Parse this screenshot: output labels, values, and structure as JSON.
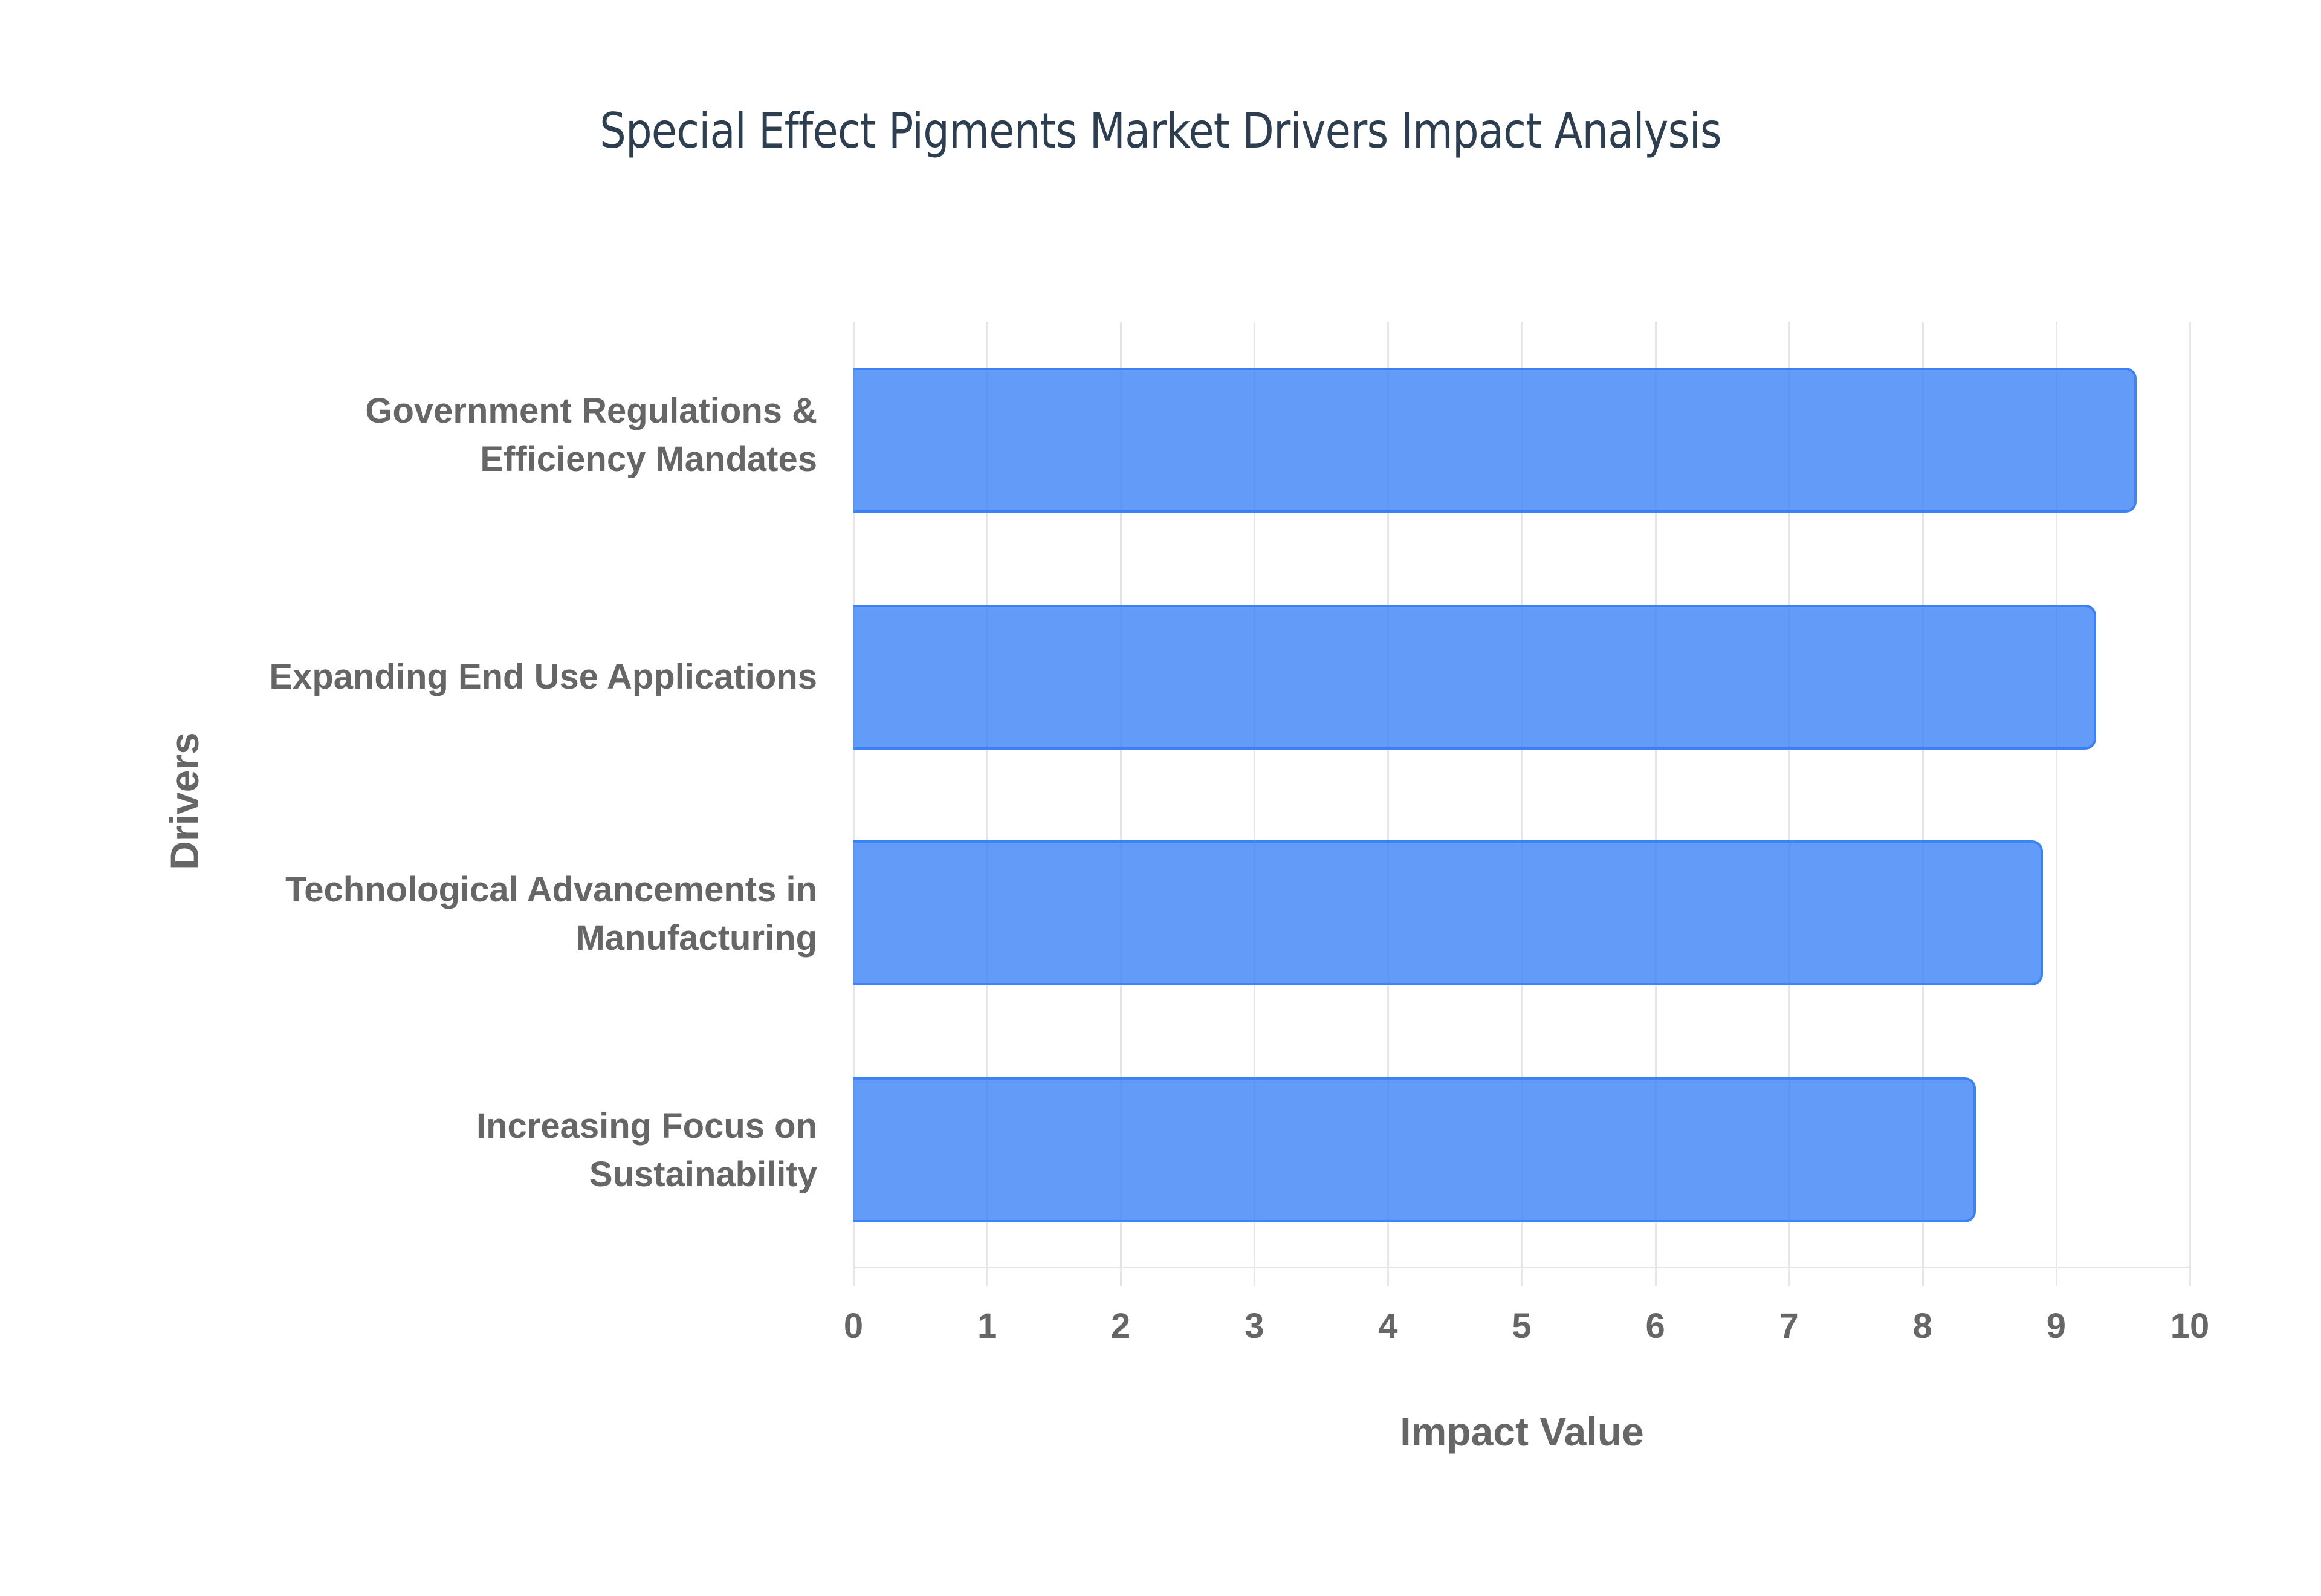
{
  "title": "Special Effect Pigments Market Drivers Impact Analysis",
  "axes": {
    "xlabel": "Impact Value",
    "ylabel": "Drivers",
    "xticks": [
      "0",
      "1",
      "2",
      "3",
      "4",
      "5",
      "6",
      "7",
      "8",
      "9",
      "10"
    ]
  },
  "categories": [
    {
      "line1": "Government Regulations &",
      "line2": "Efficiency Mandates"
    },
    {
      "line1": "Expanding End Use Applications",
      "line2": ""
    },
    {
      "line1": "Technological Advancements in",
      "line2": "Manufacturing"
    },
    {
      "line1": "Increasing Focus on",
      "line2": "Sustainability"
    }
  ],
  "colors": {
    "bar_fill": "#6399F5",
    "bar_border": "#3B82F6",
    "title": "#2C3E50",
    "axis_text": "#666666",
    "grid": "#E6E6E6"
  },
  "chart_data": {
    "type": "bar",
    "orientation": "horizontal",
    "title": "Special Effect Pigments Market Drivers Impact Analysis",
    "xlabel": "Impact Value",
    "ylabel": "Drivers",
    "categories": [
      "Government Regulations & Efficiency Mandates",
      "Expanding End Use Applications",
      "Technological Advancements in Manufacturing",
      "Increasing Focus on Sustainability"
    ],
    "values": [
      9.6,
      9.3,
      8.9,
      8.4
    ],
    "xlim": [
      0,
      10
    ],
    "xticks": [
      0,
      1,
      2,
      3,
      4,
      5,
      6,
      7,
      8,
      9,
      10
    ],
    "grid": "vertical",
    "legend": "none"
  }
}
